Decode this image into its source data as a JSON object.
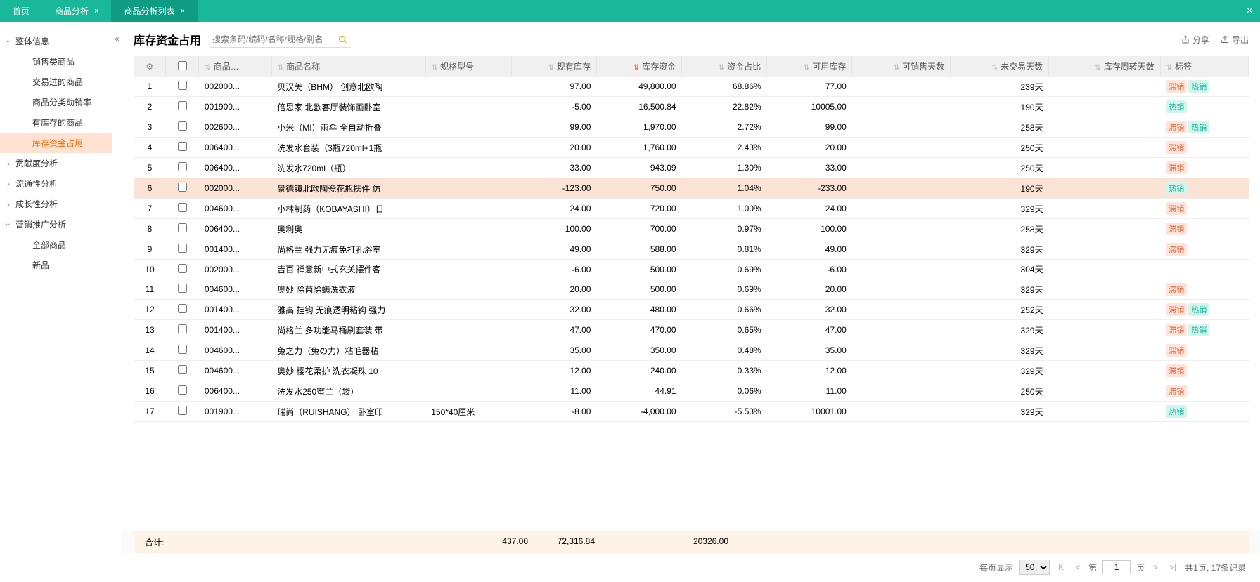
{
  "tabs": [
    {
      "label": "首页",
      "closable": false,
      "active": false
    },
    {
      "label": "商品分析",
      "closable": true,
      "active": false
    },
    {
      "label": "商品分析列表",
      "closable": true,
      "active": true
    }
  ],
  "sidebar": [
    {
      "label": "整体信息",
      "type": "parent",
      "open": true
    },
    {
      "label": "销售类商品",
      "type": "child"
    },
    {
      "label": "交易过的商品",
      "type": "child"
    },
    {
      "label": "商品分类动销率",
      "type": "child"
    },
    {
      "label": "有库存的商品",
      "type": "child"
    },
    {
      "label": "库存资金占用",
      "type": "child",
      "selected": true
    },
    {
      "label": "贡献度分析",
      "type": "parent",
      "open": false
    },
    {
      "label": "流通性分析",
      "type": "parent",
      "open": false
    },
    {
      "label": "成长性分析",
      "type": "parent",
      "open": false
    },
    {
      "label": "营销推广分析",
      "type": "parent",
      "open": true
    },
    {
      "label": "全部商品",
      "type": "child"
    },
    {
      "label": "新品",
      "type": "child"
    }
  ],
  "page_title": "库存资金占用",
  "search_placeholder": "搜索条码/编码/名称/规格/别名",
  "actions": {
    "share": "分享",
    "export": "导出"
  },
  "columns": [
    "商品…",
    "商品名称",
    "规格型号",
    "现有库存",
    "库存资金",
    "资金占比",
    "可用库存",
    "可销售天数",
    "未交易天数",
    "库存周转天数",
    "标签"
  ],
  "sort_desc_index": 4,
  "rows": [
    {
      "n": 1,
      "code": "002000...",
      "name": "贝汉美（BHM） 创意北欧陶",
      "spec": "",
      "stock": "97.00",
      "fund": "49,800.00",
      "pct": "68.86%",
      "avail": "77.00",
      "sellable": "",
      "notrade": "239天",
      "turn": "",
      "tags": [
        "slow",
        "hot"
      ]
    },
    {
      "n": 2,
      "code": "001900...",
      "name": "倍思家 北欧客厅装饰画卧室",
      "spec": "",
      "stock": "-5.00",
      "fund": "16,500.84",
      "pct": "22.82%",
      "avail": "10005.00",
      "sellable": "",
      "notrade": "190天",
      "turn": "",
      "tags": [
        "hot"
      ]
    },
    {
      "n": 3,
      "code": "002600...",
      "name": "小米（MI）雨伞 全自动折叠",
      "spec": "",
      "stock": "99.00",
      "fund": "1,970.00",
      "pct": "2.72%",
      "avail": "99.00",
      "sellable": "",
      "notrade": "258天",
      "turn": "",
      "tags": [
        "slow",
        "hot"
      ]
    },
    {
      "n": 4,
      "code": "006400...",
      "name": "洗发水套装（3瓶720ml+1瓶",
      "spec": "",
      "stock": "20.00",
      "fund": "1,760.00",
      "pct": "2.43%",
      "avail": "20.00",
      "sellable": "",
      "notrade": "250天",
      "turn": "",
      "tags": [
        "slow"
      ]
    },
    {
      "n": 5,
      "code": "006400...",
      "name": "洗发水720ml（瓶）",
      "spec": "",
      "stock": "33.00",
      "fund": "943.09",
      "pct": "1.30%",
      "avail": "33.00",
      "sellable": "",
      "notrade": "250天",
      "turn": "",
      "tags": [
        "slow"
      ]
    },
    {
      "n": 6,
      "code": "002000...",
      "name": "景德镇北欧陶瓷花瓶摆件 仿",
      "spec": "",
      "stock": "-123.00",
      "fund": "750.00",
      "pct": "1.04%",
      "avail": "-233.00",
      "sellable": "",
      "notrade": "190天",
      "turn": "",
      "tags": [
        "hot"
      ],
      "hl": true
    },
    {
      "n": 7,
      "code": "004600...",
      "name": "小林制药（KOBAYASHI）日",
      "spec": "",
      "stock": "24.00",
      "fund": "720.00",
      "pct": "1.00%",
      "avail": "24.00",
      "sellable": "",
      "notrade": "329天",
      "turn": "",
      "tags": [
        "slow"
      ]
    },
    {
      "n": 8,
      "code": "006400...",
      "name": "奥利奥",
      "spec": "",
      "stock": "100.00",
      "fund": "700.00",
      "pct": "0.97%",
      "avail": "100.00",
      "sellable": "",
      "notrade": "258天",
      "turn": "",
      "tags": [
        "slow"
      ]
    },
    {
      "n": 9,
      "code": "001400...",
      "name": "尚格兰 强力无痕免打孔浴室",
      "spec": "",
      "stock": "49.00",
      "fund": "588.00",
      "pct": "0.81%",
      "avail": "49.00",
      "sellable": "",
      "notrade": "329天",
      "turn": "",
      "tags": [
        "slow"
      ]
    },
    {
      "n": 10,
      "code": "002000...",
      "name": "吉百 禅意新中式玄关摆件客",
      "spec": "",
      "stock": "-6.00",
      "fund": "500.00",
      "pct": "0.69%",
      "avail": "-6.00",
      "sellable": "",
      "notrade": "304天",
      "turn": "",
      "tags": []
    },
    {
      "n": 11,
      "code": "004600...",
      "name": "奥妙 除菌除螨洗衣液",
      "spec": "",
      "stock": "20.00",
      "fund": "500.00",
      "pct": "0.69%",
      "avail": "20.00",
      "sellable": "",
      "notrade": "329天",
      "turn": "",
      "tags": [
        "slow"
      ]
    },
    {
      "n": 12,
      "code": "001400...",
      "name": "雅高 挂钩 无痕透明粘钩 强力",
      "spec": "",
      "stock": "32.00",
      "fund": "480.00",
      "pct": "0.66%",
      "avail": "32.00",
      "sellable": "",
      "notrade": "252天",
      "turn": "",
      "tags": [
        "slow",
        "hot"
      ]
    },
    {
      "n": 13,
      "code": "001400...",
      "name": "尚格兰 多功能马桶刷套装 带",
      "spec": "",
      "stock": "47.00",
      "fund": "470.00",
      "pct": "0.65%",
      "avail": "47.00",
      "sellable": "",
      "notrade": "329天",
      "turn": "",
      "tags": [
        "slow",
        "hot"
      ]
    },
    {
      "n": 14,
      "code": "004600...",
      "name": "兔之力（兔の力）粘毛器粘",
      "spec": "",
      "stock": "35.00",
      "fund": "350.00",
      "pct": "0.48%",
      "avail": "35.00",
      "sellable": "",
      "notrade": "329天",
      "turn": "",
      "tags": [
        "slow"
      ]
    },
    {
      "n": 15,
      "code": "004600...",
      "name": "奥妙 樱花柔护 洗衣凝珠 10",
      "spec": "",
      "stock": "12.00",
      "fund": "240.00",
      "pct": "0.33%",
      "avail": "12.00",
      "sellable": "",
      "notrade": "329天",
      "turn": "",
      "tags": [
        "slow"
      ]
    },
    {
      "n": 16,
      "code": "006400...",
      "name": "洗发水250蜜兰（袋）",
      "spec": "",
      "stock": "11.00",
      "fund": "44.91",
      "pct": "0.06%",
      "avail": "11.00",
      "sellable": "",
      "notrade": "250天",
      "turn": "",
      "tags": [
        "slow"
      ]
    },
    {
      "n": 17,
      "code": "001900...",
      "name": "瑞尚（RUISHANG） 卧室印",
      "spec": "150*40厘米",
      "stock": "-8.00",
      "fund": "-4,000.00",
      "pct": "-5.53%",
      "avail": "10001.00",
      "sellable": "",
      "notrade": "329天",
      "turn": "",
      "tags": [
        "hot"
      ]
    }
  ],
  "tag_labels": {
    "slow": "滞销",
    "hot": "热销"
  },
  "totals": {
    "label": "合计:",
    "stock": "437.00",
    "fund": "72,316.84",
    "avail": "20326.00"
  },
  "pager": {
    "per_page_label": "每页显示",
    "per_page": "50",
    "middle_word": "第",
    "page": "1",
    "page_unit": "页",
    "summary": "共1页, 17条记录"
  }
}
